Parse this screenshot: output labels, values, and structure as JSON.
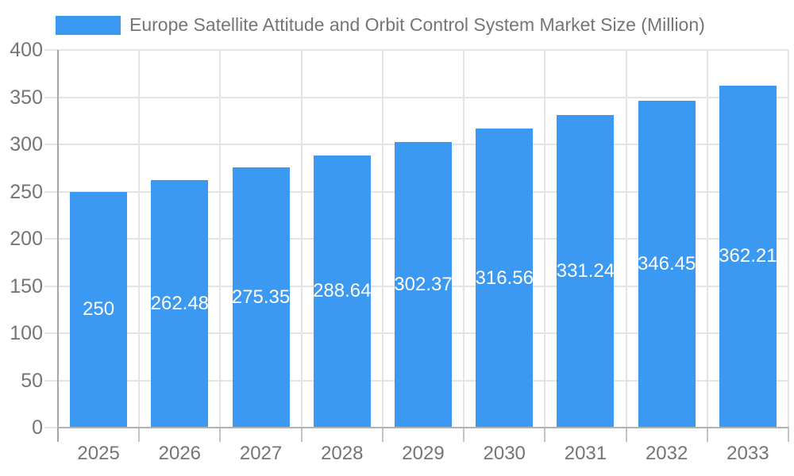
{
  "chart_data": {
    "type": "bar",
    "title": "Europe Satellite Attitude and Orbit Control System Market Size (Million)",
    "categories": [
      "2025",
      "2026",
      "2027",
      "2028",
      "2029",
      "2030",
      "2031",
      "2032",
      "2033"
    ],
    "values": [
      250,
      262.48,
      275.35,
      288.64,
      302.37,
      316.56,
      331.24,
      346.45,
      362.21
    ],
    "value_labels": [
      "250",
      "262.48",
      "275.35",
      "288.64",
      "302.37",
      "316.56",
      "331.24",
      "346.45",
      "362.21"
    ],
    "xlabel": "",
    "ylabel": "",
    "ylim": [
      0,
      400
    ],
    "yticks": [
      0,
      50,
      100,
      150,
      200,
      250,
      300,
      350,
      400
    ],
    "grid": true,
    "legend_position": "top",
    "bar_color": "#3b99f2",
    "value_label_color": "#ffffff",
    "axis_text_color": "#757575"
  }
}
